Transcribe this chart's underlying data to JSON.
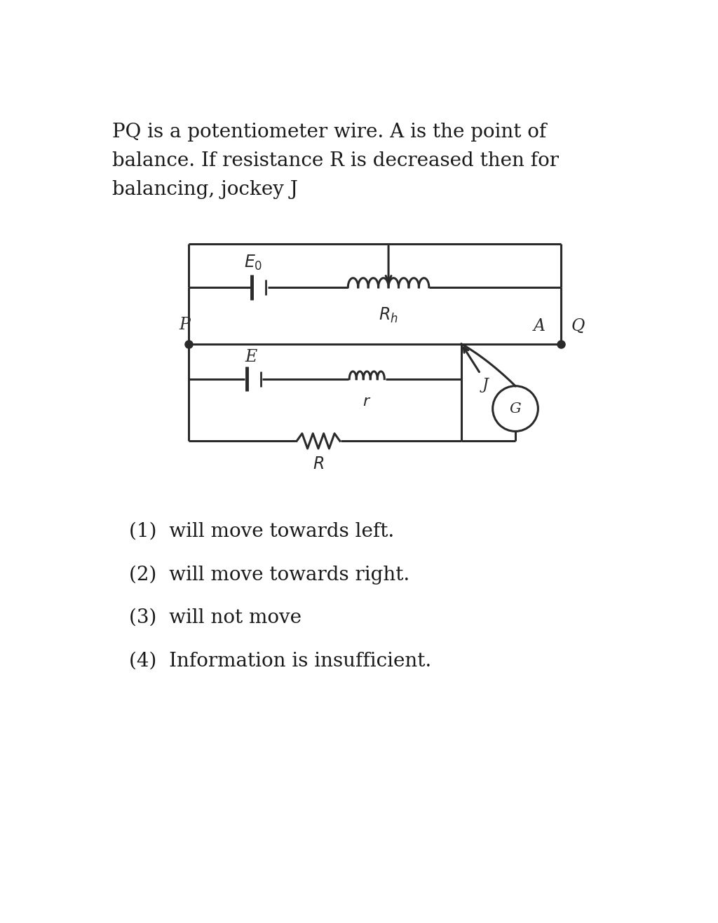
{
  "title_line1": "PQ is a potentiometer wire. A is the point of",
  "title_line2": "balance. If resistance R is decreased then for",
  "title_line3": "balancing, jockey J",
  "options": [
    "(1)  will move towards left.",
    "(2)  will move towards right.",
    "(3)  will not move",
    "(4)  Information is insufficient."
  ],
  "bg_color": "#ffffff",
  "line_color": "#2a2a2a",
  "text_color": "#1a1a1a",
  "title_fontsize": 20,
  "option_fontsize": 20
}
